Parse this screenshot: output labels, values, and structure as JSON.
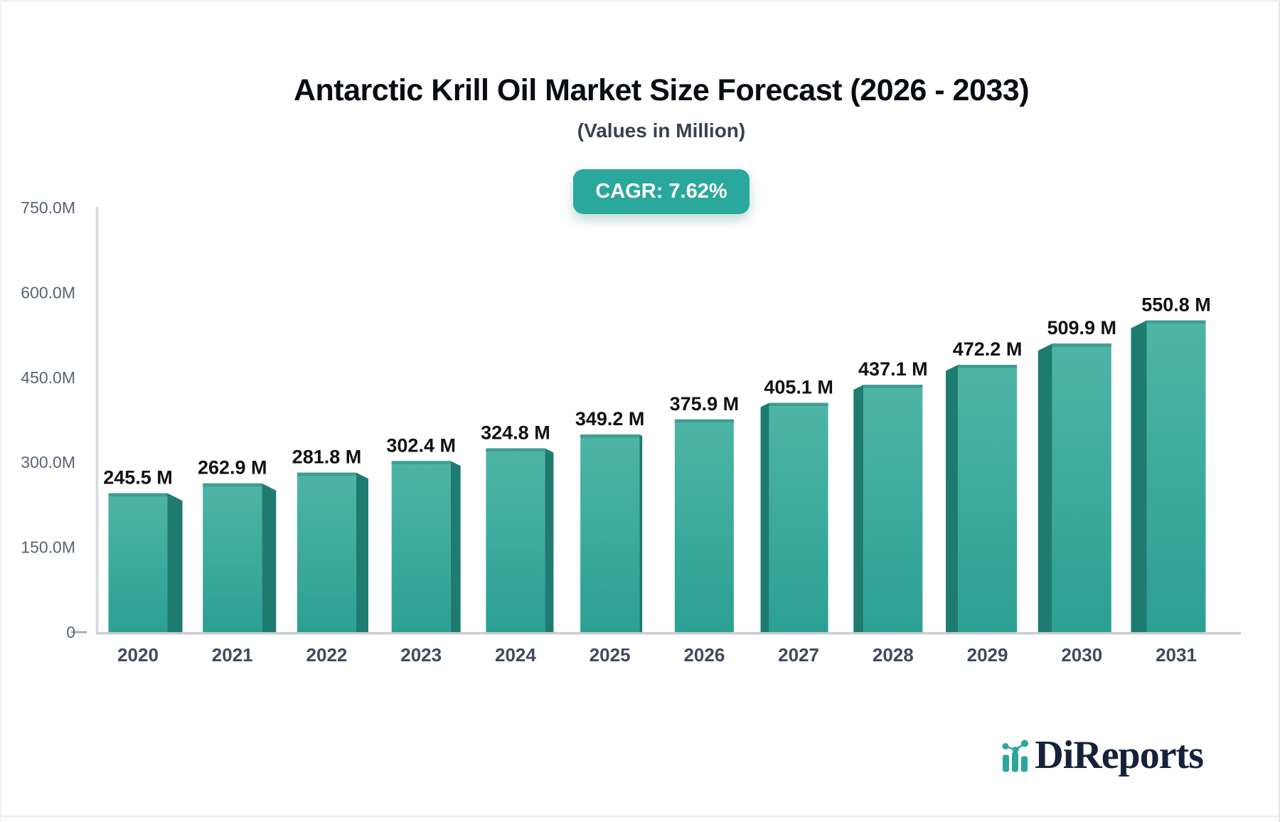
{
  "header": {
    "title": "Antarctic Krill Oil Market Size Forecast (2026 - 2033)",
    "subtitle": "(Values in Million)",
    "cagr_label": "CAGR: 7.62%"
  },
  "chart_data": {
    "type": "bar",
    "title": "Antarctic Krill Oil Market Size Forecast (2026 - 2033)",
    "subtitle": "(Values in Million)",
    "unit": "Million",
    "categories": [
      "2020",
      "2021",
      "2022",
      "2023",
      "2024",
      "2025",
      "2026",
      "2027",
      "2028",
      "2029",
      "2030",
      "2031"
    ],
    "values": [
      245.5,
      262.9,
      281.8,
      302.4,
      324.8,
      349.2,
      375.9,
      405.1,
      437.1,
      472.2,
      509.9,
      550.8
    ],
    "value_labels": [
      "245.5 M",
      "262.9 M",
      "281.8 M",
      "302.4 M",
      "324.8 M",
      "349.2 M",
      "375.9 M",
      "405.1 M",
      "437.1 M",
      "472.2 M",
      "509.9 M",
      "550.8 M"
    ],
    "y_ticks": [
      {
        "value": 0,
        "label": "0"
      },
      {
        "value": 150,
        "label": "150.0M"
      },
      {
        "value": 300,
        "label": "300.0M"
      },
      {
        "value": 450,
        "label": "450.0M"
      },
      {
        "value": 600,
        "label": "600.0M"
      },
      {
        "value": 750,
        "label": "750.0M"
      }
    ],
    "ylim": [
      0,
      750
    ],
    "xlabel": "",
    "ylabel": "",
    "grid": false,
    "legend": false,
    "bar_style": "3d-perspective"
  },
  "colors": {
    "accent": "#2aa89b",
    "bar_front_top": "#4eb5a6",
    "bar_front_bottom": "#2ba093",
    "bar_side": "#1e7b6f",
    "bar_cap": "#3e9e90",
    "axis_vertical": "#d8d9dd",
    "axis_horizontal": "#cbccd2",
    "tick_mark": "#a7adb8",
    "value_text": "#101114",
    "year_text": "#3f4a5e",
    "ytick_text": "#5a6372",
    "logo_navy": "#152239",
    "logo_teal": "#2aa79b"
  },
  "logo": {
    "text": "DiReports",
    "icon": "mini-bar-chart-icon"
  }
}
